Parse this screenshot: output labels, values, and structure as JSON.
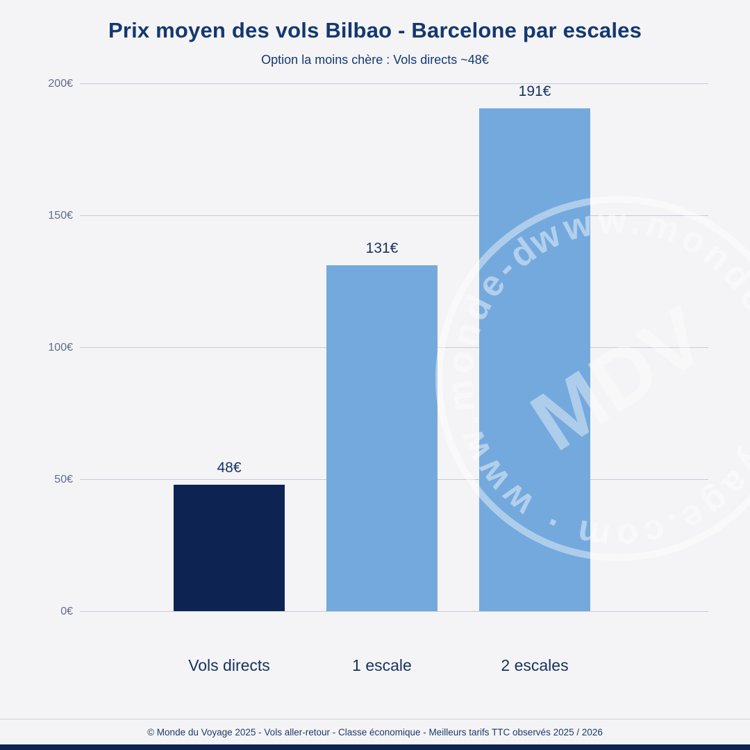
{
  "colors": {
    "background": "#f4f4f6",
    "title": "#14386e",
    "bar_primary": "#0d2453",
    "bar_secondary": "#74a9dd",
    "gridline": "#c7c9d8",
    "axis_tick": "#5f6d8c",
    "value_label": "#16325e",
    "watermark": "#ffffff",
    "bottom_bar": "#0d2453"
  },
  "header": {
    "title": "Prix moyen des vols Bilbao - Barcelone par escales",
    "subtitle": "Option la moins chère : Vols directs ~48€"
  },
  "chart_data": {
    "type": "bar",
    "categories": [
      "Vols directs",
      "1 escale",
      "2 escales"
    ],
    "values": [
      48,
      131,
      191
    ],
    "value_labels": [
      "48€",
      "131€",
      "191€"
    ],
    "title": "Prix moyen des vols Bilbao - Barcelone par escales",
    "subtitle": "Option la moins chère : Vols directs ~48€",
    "xlabel": "",
    "ylabel": "",
    "ylim": [
      0,
      200
    ],
    "yticks": [
      0,
      50,
      100,
      150,
      200
    ],
    "ytick_labels": [
      "0€",
      "50€",
      "100€",
      "150€",
      "200€"
    ],
    "grid": true,
    "legend": false,
    "bar_colors": [
      "#0d2453",
      "#74a9dd",
      "#74a9dd"
    ]
  },
  "watermark": {
    "circle_text": "www.monde-du-voyage.com · www.monde-du-voyage.com ·",
    "center_text": "MDV"
  },
  "footer": {
    "text": "© Monde du Voyage 2025 - Vols aller-retour - Classe économique - Meilleurs tarifs TTC observés 2025 / 2026"
  }
}
